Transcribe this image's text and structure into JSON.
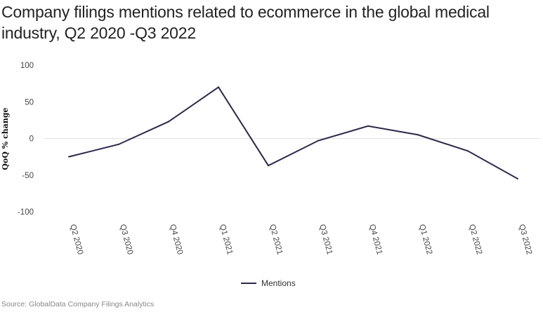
{
  "title": "Company filings mentions related to ecommerce in the global medical industry, Q2 2020 -Q3 2022",
  "source": "Source: GlobalData Company Filings Analytics",
  "colors": {
    "line": "#2a2a4a",
    "grid": "#e2e2e2",
    "text": "#222222"
  },
  "chart_data": {
    "type": "line",
    "title": "Company filings mentions related to ecommerce in the global medical industry, Q2 2020 -Q3 2022",
    "xlabel": "",
    "ylabel": "QoQ % change",
    "categories": [
      "Q2 2020",
      "Q3 2020",
      "Q4 2020",
      "Q1 2021",
      "Q2 2021",
      "Q3 2021",
      "Q4 2021",
      "Q1 2022",
      "Q2 2022",
      "Q3 2022"
    ],
    "series": [
      {
        "name": "Mentions",
        "values": [
          -25,
          -8,
          23,
          70,
          -37,
          -3,
          17,
          5,
          -17,
          -55
        ]
      }
    ],
    "yticks": [
      100,
      50,
      0,
      -50,
      -100
    ],
    "ylim": [
      -100,
      100
    ],
    "grid": false,
    "zero_line": true,
    "legend_position": "bottom"
  }
}
